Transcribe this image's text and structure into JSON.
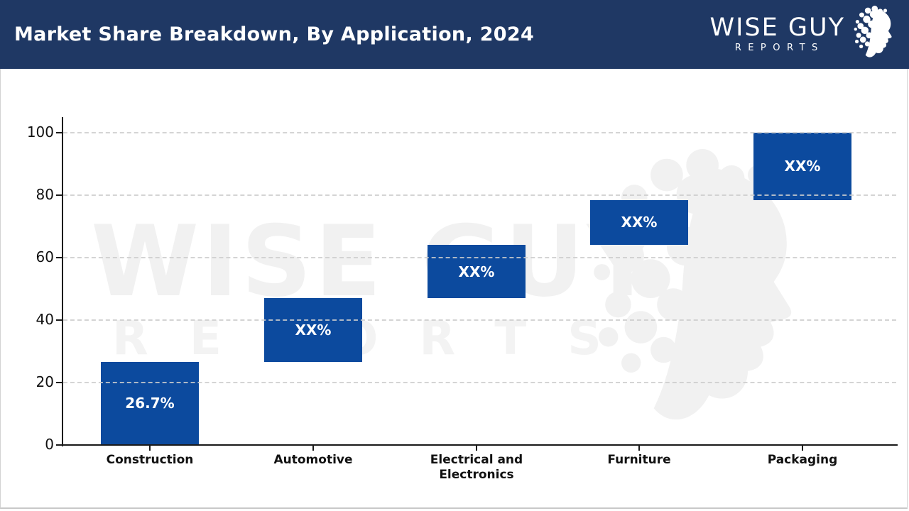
{
  "header": {
    "title": "Market Share Breakdown, By Application, 2024",
    "logo": {
      "line1": "WISE GUY",
      "line2": "REPORTS"
    }
  },
  "watermark": {
    "line1": "WISE GUY",
    "line2": "REPORTS"
  },
  "colors": {
    "header_bg": "#1f3864",
    "bar_blue": "#0c4a9e",
    "grid": "#cdcdcd",
    "axis": "#1a1a1a",
    "watermark_gray": "#f1f1f1",
    "bar_value_text": "#ffffff"
  },
  "chart_data": {
    "type": "bar",
    "subtype": "waterfall",
    "title": "Market Share Breakdown, By Application, 2024",
    "categories": [
      "Construction",
      "Automotive",
      "Electrical and Electronics",
      "Furniture",
      "Packaging"
    ],
    "bars": [
      {
        "category": "Construction",
        "start": 0,
        "end": 26.7,
        "label": "26.7%"
      },
      {
        "category": "Automotive",
        "start": 26.7,
        "end": 47,
        "label": "XX%"
      },
      {
        "category": "Electrical and Electronics",
        "start": 47,
        "end": 64,
        "label": "XX%"
      },
      {
        "category": "Furniture",
        "start": 64,
        "end": 78.5,
        "label": "XX%"
      },
      {
        "category": "Packaging",
        "start": 78.5,
        "end": 100,
        "label": "XX%"
      }
    ],
    "y_ticks": [
      0,
      20,
      40,
      60,
      80,
      100
    ],
    "ylim": [
      0,
      105
    ],
    "xlabel": "",
    "ylabel": "",
    "grid": "horizontal-dashed",
    "legend": "none"
  }
}
